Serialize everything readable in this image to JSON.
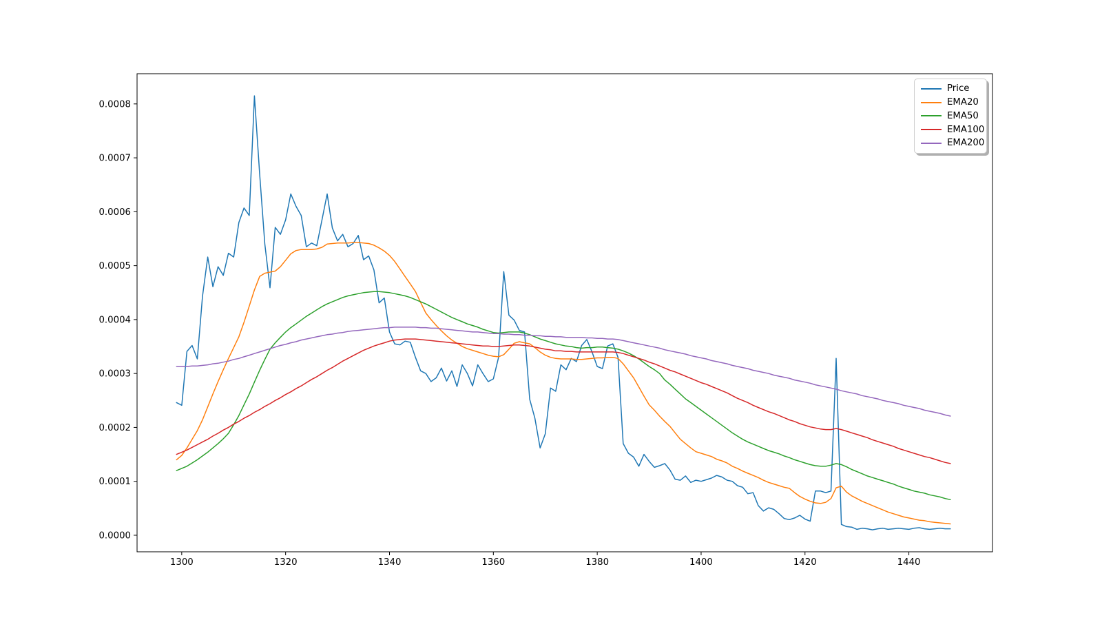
{
  "figure": {
    "background": "#ffffff"
  },
  "axes": {
    "x": {
      "tick_values": [
        1300,
        1320,
        1340,
        1360,
        1380,
        1400,
        1420,
        1440
      ],
      "tick_labels": [
        "1300",
        "1320",
        "1340",
        "1360",
        "1380",
        "1400",
        "1420",
        "1440"
      ]
    },
    "y": {
      "tick_values": [
        0.0,
        0.0001,
        0.0002,
        0.0003,
        0.0004,
        0.0005,
        0.0006,
        0.0007,
        0.0008
      ],
      "tick_labels": [
        "0.0000",
        "0.0001",
        "0.0002",
        "0.0003",
        "0.0004",
        "0.0005",
        "0.0006",
        "0.0007",
        "0.0008"
      ]
    }
  },
  "chart_data": {
    "type": "line",
    "title": "",
    "xlabel": "",
    "ylabel": "",
    "grid": false,
    "legend_position": "upper right",
    "x_start": 1299,
    "x_step": 1,
    "x_end": 1448,
    "xlim": [
      1291.4,
      1456.1
    ],
    "ylim": [
      -3.07e-05,
      0.000856
    ],
    "series": [
      {
        "name": "Price",
        "color": "#1f77b4",
        "values": [
          0.000246,
          0.000241,
          0.000341,
          0.000352,
          0.000327,
          0.000443,
          0.000516,
          0.000461,
          0.000498,
          0.000482,
          0.000523,
          0.000516,
          0.00058,
          0.000607,
          0.000593,
          0.000815,
          0.00067,
          0.00054,
          0.000459,
          0.000571,
          0.000558,
          0.000585,
          0.000633,
          0.00061,
          0.000593,
          0.000535,
          0.000542,
          0.000537,
          0.000585,
          0.000633,
          0.00057,
          0.000546,
          0.000558,
          0.000535,
          0.000541,
          0.000556,
          0.000511,
          0.000518,
          0.000492,
          0.000431,
          0.00044,
          0.000377,
          0.000355,
          0.000353,
          0.00036,
          0.000358,
          0.00033,
          0.000305,
          0.0003,
          0.000285,
          0.000292,
          0.00031,
          0.000286,
          0.000305,
          0.000276,
          0.000316,
          0.0003,
          0.000277,
          0.000316,
          0.0003,
          0.000285,
          0.00029,
          0.00033,
          0.000489,
          0.000408,
          0.000399,
          0.00038,
          0.000377,
          0.000252,
          0.000217,
          0.000162,
          0.000188,
          0.000273,
          0.000267,
          0.000316,
          0.000307,
          0.000328,
          0.000322,
          0.000352,
          0.000363,
          0.00034,
          0.000313,
          0.000309,
          0.000351,
          0.000355,
          0.00033,
          0.00017,
          0.000152,
          0.000145,
          0.000128,
          0.00015,
          0.000137,
          0.000126,
          0.000129,
          0.000133,
          0.000121,
          0.000104,
          0.000102,
          0.00011,
          9.8e-05,
          0.000102,
          0.0001,
          0.000103,
          0.000106,
          0.000111,
          0.000108,
          0.000102,
          0.0001,
          9.2e-05,
          8.9e-05,
          7.7e-05,
          7.9e-05,
          5.5e-05,
          4.5e-05,
          5.1e-05,
          4.8e-05,
          4e-05,
          3.1e-05,
          2.9e-05,
          3.2e-05,
          3.7e-05,
          3e-05,
          2.6e-05,
          8.2e-05,
          8.2e-05,
          7.9e-05,
          8.2e-05,
          0.000328,
          2e-05,
          1.6e-05,
          1.5e-05,
          1.1e-05,
          1.3e-05,
          1.2e-05,
          1e-05,
          1.2e-05,
          1.3e-05,
          1.1e-05,
          1.2e-05,
          1.3e-05,
          1.2e-05,
          1.1e-05,
          1.3e-05,
          1.4e-05,
          1.2e-05,
          1.1e-05,
          1.2e-05,
          1.3e-05,
          1.2e-05,
          1.2e-05
        ]
      },
      {
        "name": "EMA20",
        "color": "#ff7f0e",
        "values": [
          0.00014,
          0.000148,
          0.000162,
          0.000178,
          0.000194,
          0.000214,
          0.000238,
          0.000262,
          0.000285,
          0.000307,
          0.000328,
          0.000348,
          0.000368,
          0.000395,
          0.000425,
          0.000455,
          0.00048,
          0.000486,
          0.000488,
          0.00049,
          0.000498,
          0.00051,
          0.000522,
          0.000528,
          0.00053,
          0.00053,
          0.00053,
          0.000531,
          0.000534,
          0.00054,
          0.000541,
          0.000542,
          0.000542,
          0.000542,
          0.000543,
          0.000543,
          0.000542,
          0.000541,
          0.000538,
          0.000533,
          0.000527,
          0.000519,
          0.000508,
          0.000494,
          0.00048,
          0.000466,
          0.000452,
          0.000432,
          0.000412,
          0.0004,
          0.000389,
          0.000379,
          0.00037,
          0.000362,
          0.000356,
          0.00035,
          0.000346,
          0.000343,
          0.00034,
          0.000337,
          0.000334,
          0.000332,
          0.000331,
          0.000335,
          0.000345,
          0.000356,
          0.000359,
          0.000357,
          0.000355,
          0.000348,
          0.00034,
          0.000334,
          0.00033,
          0.000328,
          0.000327,
          0.000327,
          0.000327,
          0.000326,
          0.000326,
          0.000327,
          0.000328,
          0.000329,
          0.000329,
          0.00033,
          0.00033,
          0.000328,
          0.000318,
          0.000305,
          0.000292,
          0.000275,
          0.000258,
          0.000242,
          0.000232,
          0.000221,
          0.000211,
          0.000202,
          0.00019,
          0.000178,
          0.00017,
          0.000162,
          0.000155,
          0.000152,
          0.000149,
          0.000146,
          0.000141,
          0.000138,
          0.000134,
          0.000128,
          0.000124,
          0.000119,
          0.000115,
          0.000111,
          0.000107,
          0.000102,
          9.8e-05,
          9.5e-05,
          9.2e-05,
          8.9e-05,
          8.7e-05,
          7.9e-05,
          7.2e-05,
          6.7e-05,
          6.3e-05,
          6e-05,
          5.9e-05,
          6.1e-05,
          6.8e-05,
          8.8e-05,
          9.1e-05,
          8e-05,
          7.3e-05,
          6.8e-05,
          6.3e-05,
          5.9e-05,
          5.5e-05,
          5.1e-05,
          4.7e-05,
          4.3e-05,
          4e-05,
          3.7e-05,
          3.4e-05,
          3.2e-05,
          3e-05,
          2.8e-05,
          2.7e-05,
          2.5e-05,
          2.4e-05,
          2.3e-05,
          2.2e-05,
          2.1e-05
        ]
      },
      {
        "name": "EMA50",
        "color": "#2ca02c",
        "values": [
          0.00012,
          0.000124,
          0.000128,
          0.000134,
          0.00014,
          0.000147,
          0.000154,
          0.000162,
          0.00017,
          0.000179,
          0.000189,
          0.000205,
          0.000222,
          0.000242,
          0.000262,
          0.000284,
          0.000306,
          0.000326,
          0.000345,
          0.000357,
          0.000367,
          0.000377,
          0.000385,
          0.000392,
          0.000399,
          0.000406,
          0.000412,
          0.000418,
          0.000424,
          0.000429,
          0.000433,
          0.000437,
          0.000441,
          0.000444,
          0.000446,
          0.000448,
          0.00045,
          0.000451,
          0.000452,
          0.000452,
          0.000451,
          0.00045,
          0.000448,
          0.000446,
          0.000444,
          0.000441,
          0.000437,
          0.000433,
          0.000429,
          0.000424,
          0.000419,
          0.000414,
          0.000409,
          0.000404,
          0.0004,
          0.000396,
          0.000392,
          0.000389,
          0.000386,
          0.000382,
          0.000379,
          0.000376,
          0.000375,
          0.000376,
          0.000377,
          0.000377,
          0.000377,
          0.000375,
          0.000372,
          0.000368,
          0.000364,
          0.000361,
          0.000358,
          0.000355,
          0.000353,
          0.000351,
          0.00035,
          0.000348,
          0.000347,
          0.000348,
          0.000348,
          0.000349,
          0.000349,
          0.000348,
          0.000347,
          0.000345,
          0.000342,
          0.000338,
          0.000333,
          0.000327,
          0.00032,
          0.000313,
          0.000307,
          0.0003,
          0.000288,
          0.00028,
          0.000271,
          0.000262,
          0.000253,
          0.000246,
          0.000239,
          0.000232,
          0.000225,
          0.000218,
          0.000211,
          0.000204,
          0.000197,
          0.00019,
          0.000184,
          0.000178,
          0.000173,
          0.000169,
          0.000165,
          0.000161,
          0.000157,
          0.000154,
          0.000151,
          0.000147,
          0.000144,
          0.00014,
          0.000137,
          0.000134,
          0.000131,
          0.000129,
          0.000128,
          0.000128,
          0.00013,
          0.000133,
          0.000131,
          0.000127,
          0.000122,
          0.000118,
          0.000114,
          0.00011,
          0.000107,
          0.000104,
          0.000101,
          9.8e-05,
          9.5e-05,
          9.1e-05,
          8.8e-05,
          8.5e-05,
          8.2e-05,
          8e-05,
          7.8e-05,
          7.5e-05,
          7.3e-05,
          7.1e-05,
          6.8e-05,
          6.6e-05
        ]
      },
      {
        "name": "EMA100",
        "color": "#d62728",
        "values": [
          0.00015,
          0.000154,
          0.000158,
          0.000163,
          0.000168,
          0.000173,
          0.000178,
          0.000184,
          0.000189,
          0.000195,
          0.0002,
          0.000206,
          0.000211,
          0.000217,
          0.000222,
          0.000228,
          0.000233,
          0.000239,
          0.000244,
          0.00025,
          0.000255,
          0.000261,
          0.000266,
          0.000272,
          0.000277,
          0.000283,
          0.000289,
          0.000294,
          0.0003,
          0.000306,
          0.000311,
          0.000317,
          0.000323,
          0.000328,
          0.000333,
          0.000338,
          0.000343,
          0.000347,
          0.000351,
          0.000354,
          0.000357,
          0.00036,
          0.000362,
          0.000363,
          0.000364,
          0.000364,
          0.000364,
          0.000363,
          0.000362,
          0.000361,
          0.00036,
          0.000359,
          0.000358,
          0.000357,
          0.000356,
          0.000355,
          0.000354,
          0.000353,
          0.000352,
          0.000351,
          0.000351,
          0.00035,
          0.00035,
          0.000351,
          0.000352,
          0.000353,
          0.000353,
          0.000352,
          0.000351,
          0.000349,
          0.000347,
          0.000345,
          0.000344,
          0.000342,
          0.000342,
          0.000341,
          0.000341,
          0.00034,
          0.00034,
          0.00034,
          0.00034,
          0.00034,
          0.00034,
          0.00034,
          0.00034,
          0.000339,
          0.000337,
          0.000334,
          0.000331,
          0.000328,
          0.000325,
          0.000321,
          0.000318,
          0.000314,
          0.00031,
          0.000306,
          0.000303,
          0.000299,
          0.000295,
          0.000291,
          0.000287,
          0.000283,
          0.00028,
          0.000276,
          0.000272,
          0.000268,
          0.000264,
          0.000259,
          0.000254,
          0.00025,
          0.000246,
          0.000241,
          0.000237,
          0.000233,
          0.000229,
          0.000226,
          0.000222,
          0.000218,
          0.000214,
          0.000211,
          0.000207,
          0.000204,
          0.000201,
          0.000199,
          0.000197,
          0.000196,
          0.000196,
          0.000198,
          0.000196,
          0.000193,
          0.00019,
          0.000187,
          0.000184,
          0.000181,
          0.000177,
          0.000174,
          0.000171,
          0.000168,
          0.000165,
          0.000161,
          0.000158,
          0.000155,
          0.000152,
          0.000149,
          0.000146,
          0.000144,
          0.000141,
          0.000138,
          0.000135,
          0.000133
        ]
      },
      {
        "name": "EMA200",
        "color": "#9467bd",
        "values": [
          0.000313,
          0.000313,
          0.000313,
          0.000314,
          0.000314,
          0.000315,
          0.000316,
          0.000318,
          0.000319,
          0.000321,
          0.000323,
          0.000326,
          0.000328,
          0.000331,
          0.000334,
          0.000337,
          0.00034,
          0.000343,
          0.000346,
          0.000349,
          0.000352,
          0.000354,
          0.000357,
          0.000359,
          0.000362,
          0.000364,
          0.000366,
          0.000368,
          0.00037,
          0.000372,
          0.000373,
          0.000375,
          0.000376,
          0.000378,
          0.000379,
          0.00038,
          0.000381,
          0.000382,
          0.000383,
          0.000384,
          0.000385,
          0.000385,
          0.000386,
          0.000386,
          0.000386,
          0.000386,
          0.000386,
          0.000385,
          0.000385,
          0.000384,
          0.000384,
          0.000383,
          0.000382,
          0.000381,
          0.00038,
          0.000379,
          0.000378,
          0.000377,
          0.000377,
          0.000376,
          0.000375,
          0.000374,
          0.000374,
          0.000373,
          0.000373,
          0.000372,
          0.000372,
          0.000371,
          0.000371,
          0.00037,
          0.00037,
          0.000369,
          0.000369,
          0.000368,
          0.000368,
          0.000367,
          0.000367,
          0.000367,
          0.000367,
          0.000366,
          0.000366,
          0.000365,
          0.000365,
          0.000364,
          0.000364,
          0.000363,
          0.000361,
          0.000359,
          0.000357,
          0.000355,
          0.000353,
          0.000351,
          0.000349,
          0.000347,
          0.000344,
          0.000342,
          0.00034,
          0.000338,
          0.000336,
          0.000333,
          0.000331,
          0.000329,
          0.000327,
          0.000324,
          0.000322,
          0.00032,
          0.000318,
          0.000315,
          0.000313,
          0.000311,
          0.000309,
          0.000306,
          0.000304,
          0.000302,
          0.0003,
          0.000297,
          0.000295,
          0.000293,
          0.000291,
          0.000288,
          0.000286,
          0.000284,
          0.000282,
          0.000279,
          0.000277,
          0.000275,
          0.000273,
          0.000271,
          0.000268,
          0.000266,
          0.000264,
          0.000262,
          0.000259,
          0.000257,
          0.000255,
          0.000253,
          0.00025,
          0.000248,
          0.000246,
          0.000244,
          0.000241,
          0.000239,
          0.000237,
          0.000235,
          0.000232,
          0.00023,
          0.000228,
          0.000226,
          0.000223,
          0.000221
        ]
      }
    ]
  }
}
